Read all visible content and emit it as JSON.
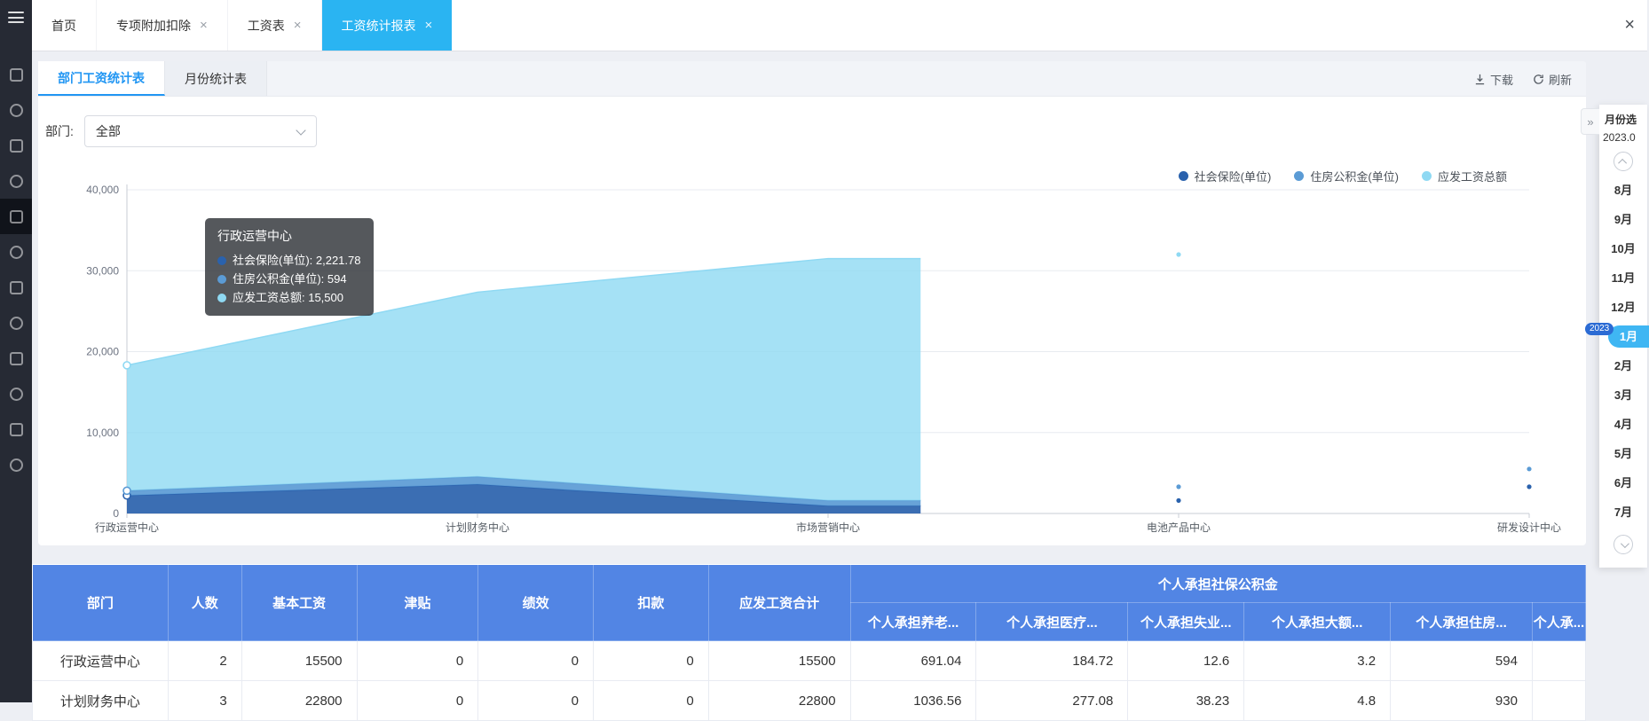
{
  "tab_bar": {
    "tabs": [
      {
        "label": "首页",
        "closable": false,
        "active": false
      },
      {
        "label": "专项附加扣除",
        "closable": true,
        "active": false
      },
      {
        "label": "工资表",
        "closable": true,
        "active": false
      },
      {
        "label": "工资统计报表",
        "closable": true,
        "active": true
      }
    ],
    "close_icon": "×",
    "close_all_icon": "×"
  },
  "toolbar": {
    "subtabs": [
      {
        "label": "部门工资统计表",
        "active": true
      },
      {
        "label": "月份统计表",
        "active": false
      }
    ],
    "download_label": "下载",
    "refresh_label": "刷新"
  },
  "filter": {
    "label": "部门:",
    "value": "全部"
  },
  "chart_data": {
    "type": "area",
    "stacked": true,
    "categories": [
      "行政运营中心",
      "计划财务中心",
      "市场营销中心",
      "电池产品中心",
      "研发设计中心"
    ],
    "series": [
      {
        "name": "社会保险(单位)",
        "color": "#2a62ad",
        "values": [
          2221.78,
          3600,
          950,
          null,
          null
        ]
      },
      {
        "name": "住房公积金(单位)",
        "color": "#5b9bd5",
        "values": [
          594,
          950,
          650,
          null,
          null
        ]
      },
      {
        "name": "应发工资总额",
        "color": "#8fd9f3",
        "values": [
          15500,
          22800,
          29900,
          null,
          null
        ]
      }
    ],
    "scatter_points": [
      {
        "series": "应发工资总额",
        "category": "电池产品中心",
        "value": 32000
      },
      {
        "series": "住房公积金(单位)",
        "category": "电池产品中心",
        "value": 3300
      },
      {
        "series": "社会保险(单位)",
        "category": "电池产品中心",
        "value": 1600
      },
      {
        "series": "住房公积金(单位)",
        "category": "研发设计中心",
        "value": 5500
      },
      {
        "series": "社会保险(单位)",
        "category": "研发设计中心",
        "value": 3300
      }
    ],
    "ylim": [
      0,
      40000
    ],
    "ytick_labels": [
      "0",
      "10,000",
      "20,000",
      "30,000",
      "40,000"
    ],
    "area_end_fraction": 0.566,
    "legend_position": "top-right",
    "grid": true
  },
  "tooltip": {
    "title": "行政运营中心",
    "rows": [
      {
        "text": "社会保险(单位): 2,221.78",
        "color": "#2a62ad"
      },
      {
        "text": "住房公积金(单位): 594",
        "color": "#5b9bd5"
      },
      {
        "text": "应发工资总额: 15,500",
        "color": "#8fd9f3"
      }
    ]
  },
  "month_panel": {
    "collapse_icon": "»",
    "title": "月份选",
    "subtitle": "2023.0",
    "year_badge": "2023",
    "selected": "1月",
    "months": [
      "8月",
      "9月",
      "10月",
      "11月",
      "12月",
      "1月",
      "2月",
      "3月",
      "4月",
      "5月",
      "6月",
      "7月"
    ]
  },
  "table": {
    "group_header": "个人承担社保公积金",
    "columns": [
      "部门",
      "人数",
      "基本工资",
      "津贴",
      "绩效",
      "扣款",
      "应发工资合计"
    ],
    "sub_columns": [
      "个人承担养老...",
      "个人承担医疗...",
      "个人承担失业...",
      "个人承担大额...",
      "个人承担住房...",
      "个人承..."
    ],
    "rows": [
      [
        "行政运营中心",
        "2",
        "15500",
        "0",
        "0",
        "0",
        "15500",
        "691.04",
        "184.72",
        "12.6",
        "3.2",
        "594",
        ""
      ],
      [
        "计划财务中心",
        "3",
        "22800",
        "0",
        "0",
        "0",
        "22800",
        "1036.56",
        "277.08",
        "38.23",
        "4.8",
        "930",
        ""
      ]
    ]
  }
}
